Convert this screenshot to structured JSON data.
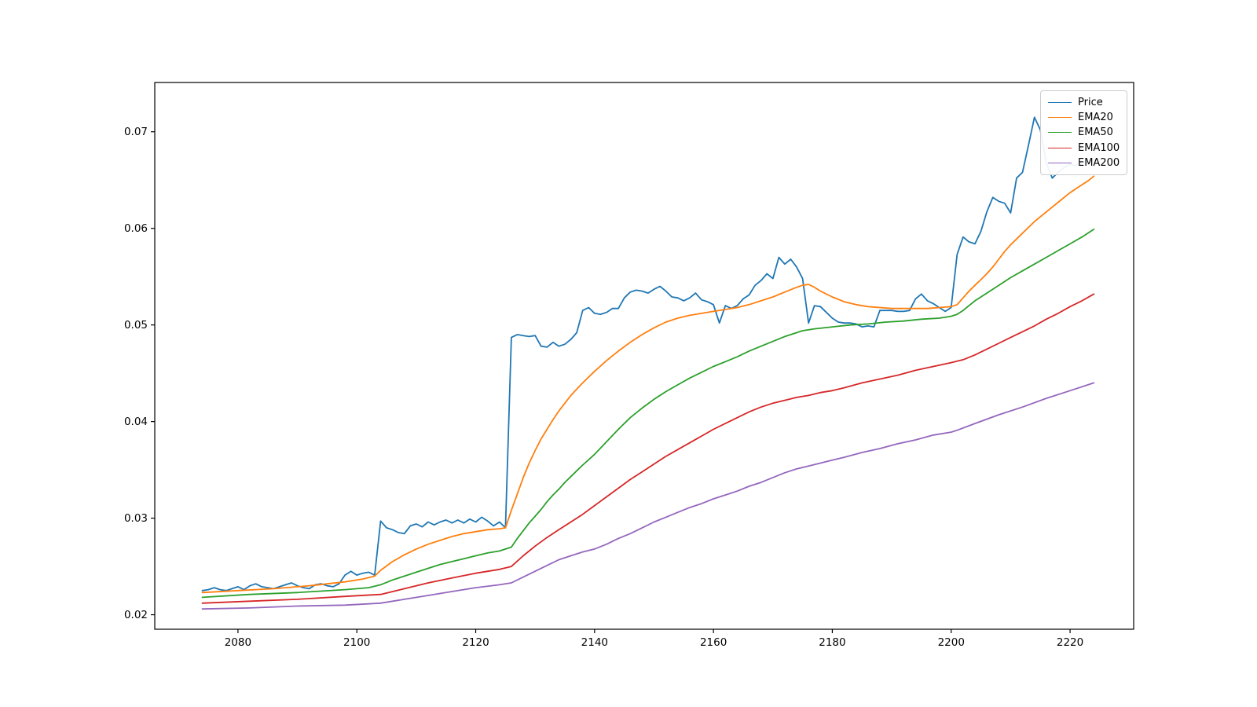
{
  "figure": {
    "background": "#ffffff",
    "title": ""
  },
  "chart_data": {
    "type": "line",
    "title": "",
    "xlabel": "",
    "ylabel": "",
    "grid": false,
    "xlim": [
      2066.0,
      2230.7
    ],
    "ylim": [
      0.0185,
      0.0751
    ],
    "x_ticks": {
      "values": [
        2080,
        2100,
        2120,
        2140,
        2160,
        2180,
        2200,
        2220
      ],
      "labels": [
        "2080",
        "2100",
        "2120",
        "2140",
        "2160",
        "2180",
        "2200",
        "2220"
      ]
    },
    "y_ticks": {
      "values": [
        0.02,
        0.03,
        0.04,
        0.05,
        0.06,
        0.07
      ],
      "labels": [
        "0.02",
        "0.03",
        "0.04",
        "0.05",
        "0.06",
        "0.07"
      ]
    },
    "legend": {
      "location": "upper right",
      "entries": [
        "Price",
        "EMA20",
        "EMA50",
        "EMA100",
        "EMA200"
      ]
    },
    "series": [
      {
        "name": "Price",
        "color": "#1f77b4",
        "x_start": 2074,
        "x_step": 1,
        "y": [
          0.0225,
          0.0226,
          0.0228,
          0.0226,
          0.0225,
          0.0227,
          0.0229,
          0.0226,
          0.023,
          0.0232,
          0.0229,
          0.0228,
          0.0227,
          0.0229,
          0.0231,
          0.0233,
          0.023,
          0.0228,
          0.0227,
          0.0231,
          0.0232,
          0.023,
          0.0229,
          0.0232,
          0.0241,
          0.0245,
          0.0241,
          0.0243,
          0.0244,
          0.0241,
          0.0297,
          0.029,
          0.0288,
          0.0285,
          0.0284,
          0.0292,
          0.0294,
          0.0291,
          0.0296,
          0.0293,
          0.0296,
          0.0298,
          0.0295,
          0.0298,
          0.0295,
          0.0299,
          0.0296,
          0.0301,
          0.0297,
          0.0292,
          0.0296,
          0.029,
          0.0487,
          0.049,
          0.0489,
          0.0488,
          0.0489,
          0.0478,
          0.0477,
          0.0482,
          0.0478,
          0.048,
          0.0485,
          0.0492,
          0.0515,
          0.0518,
          0.0512,
          0.0511,
          0.0513,
          0.0517,
          0.0517,
          0.0528,
          0.0534,
          0.0536,
          0.0535,
          0.0533,
          0.0537,
          0.054,
          0.0535,
          0.0529,
          0.0528,
          0.0525,
          0.0528,
          0.0533,
          0.0526,
          0.0524,
          0.0521,
          0.0502,
          0.052,
          0.0517,
          0.052,
          0.0527,
          0.0531,
          0.0541,
          0.0546,
          0.0553,
          0.0548,
          0.057,
          0.0563,
          0.0568,
          0.056,
          0.0548,
          0.0502,
          0.052,
          0.0519,
          0.0513,
          0.0507,
          0.0503,
          0.0502,
          0.0502,
          0.0501,
          0.0498,
          0.0499,
          0.0498,
          0.0515,
          0.0515,
          0.0515,
          0.0514,
          0.0514,
          0.0515,
          0.0527,
          0.0532,
          0.0525,
          0.0522,
          0.0518,
          0.0514,
          0.0518,
          0.0573,
          0.0591,
          0.0586,
          0.0584,
          0.0597,
          0.0617,
          0.0632,
          0.0628,
          0.0626,
          0.0616,
          0.0652,
          0.0658,
          0.0686,
          0.0715,
          0.0702,
          0.0668,
          0.0652,
          0.0658,
          0.0663,
          0.0666,
          0.0665,
          0.0669,
          0.0668,
          0.0671
        ]
      },
      {
        "name": "EMA20",
        "color": "#ff7f0e",
        "x": [
          2074,
          2080,
          2086,
          2092,
          2098,
          2101,
          2103,
          2104,
          2106,
          2108,
          2110,
          2112,
          2114,
          2116,
          2118,
          2120,
          2122,
          2124,
          2125,
          2126,
          2127,
          2128,
          2129,
          2130,
          2131,
          2132,
          2133,
          2134,
          2135,
          2136,
          2138,
          2140,
          2142,
          2144,
          2146,
          2148,
          2150,
          2152,
          2154,
          2156,
          2158,
          2160,
          2162,
          2164,
          2166,
          2168,
          2170,
          2172,
          2174,
          2175,
          2176,
          2177,
          2178,
          2180,
          2182,
          2184,
          2186,
          2188,
          2190,
          2193,
          2196,
          2198,
          2200,
          2201,
          2202,
          2203,
          2204,
          2205,
          2206,
          2207,
          2208,
          2209,
          2210,
          2211,
          2212,
          2213,
          2214,
          2215,
          2216,
          2217,
          2218,
          2219,
          2220,
          2221,
          2222,
          2223,
          2224
        ],
        "y": [
          0.0223,
          0.0225,
          0.0227,
          0.023,
          0.0234,
          0.0237,
          0.024,
          0.0246,
          0.0255,
          0.0262,
          0.0268,
          0.0273,
          0.0277,
          0.0281,
          0.0284,
          0.0286,
          0.0288,
          0.0289,
          0.029,
          0.0308,
          0.0325,
          0.0342,
          0.0357,
          0.037,
          0.0382,
          0.0392,
          0.0402,
          0.0411,
          0.0419,
          0.0427,
          0.044,
          0.0452,
          0.0463,
          0.0473,
          0.0482,
          0.049,
          0.0497,
          0.0503,
          0.0507,
          0.051,
          0.0512,
          0.0514,
          0.0516,
          0.0518,
          0.0521,
          0.0525,
          0.0529,
          0.0534,
          0.0539,
          0.0541,
          0.0542,
          0.0539,
          0.0535,
          0.0529,
          0.0524,
          0.0521,
          0.0519,
          0.0518,
          0.0517,
          0.0517,
          0.0517,
          0.0518,
          0.0519,
          0.0521,
          0.0528,
          0.0535,
          0.0541,
          0.0547,
          0.0553,
          0.056,
          0.0568,
          0.0576,
          0.0583,
          0.0589,
          0.0595,
          0.0601,
          0.0607,
          0.0612,
          0.0617,
          0.0622,
          0.0627,
          0.0632,
          0.0637,
          0.0641,
          0.0645,
          0.0649,
          0.0654
        ]
      },
      {
        "name": "EMA50",
        "color": "#2ca02c",
        "x": [
          2074,
          2082,
          2090,
          2098,
          2102,
          2104,
          2106,
          2108,
          2110,
          2112,
          2114,
          2116,
          2118,
          2120,
          2122,
          2124,
          2125,
          2126,
          2127,
          2128,
          2129,
          2130,
          2131,
          2132,
          2133,
          2134,
          2135,
          2136,
          2137,
          2138,
          2140,
          2142,
          2144,
          2146,
          2148,
          2150,
          2152,
          2154,
          2156,
          2158,
          2160,
          2162,
          2164,
          2166,
          2168,
          2170,
          2172,
          2174,
          2175,
          2177,
          2180,
          2183,
          2186,
          2189,
          2192,
          2195,
          2198,
          2200,
          2201,
          2202,
          2203,
          2204,
          2206,
          2208,
          2210,
          2212,
          2214,
          2216,
          2218,
          2220,
          2222,
          2224
        ],
        "y": [
          0.0218,
          0.0221,
          0.0223,
          0.0226,
          0.0228,
          0.0231,
          0.0236,
          0.024,
          0.0244,
          0.0248,
          0.0252,
          0.0255,
          0.0258,
          0.0261,
          0.0264,
          0.0266,
          0.0268,
          0.027,
          0.0279,
          0.0287,
          0.0295,
          0.0302,
          0.0309,
          0.0317,
          0.0324,
          0.033,
          0.0337,
          0.0343,
          0.0349,
          0.0355,
          0.0366,
          0.0379,
          0.0392,
          0.0404,
          0.0414,
          0.0423,
          0.0431,
          0.0438,
          0.0445,
          0.0451,
          0.0457,
          0.0462,
          0.0467,
          0.0473,
          0.0478,
          0.0483,
          0.0488,
          0.0492,
          0.0494,
          0.0496,
          0.0498,
          0.05,
          0.0501,
          0.0503,
          0.0504,
          0.0506,
          0.0507,
          0.0509,
          0.0511,
          0.0515,
          0.052,
          0.0525,
          0.0533,
          0.0541,
          0.0549,
          0.0556,
          0.0563,
          0.057,
          0.0577,
          0.0584,
          0.0591,
          0.0599
        ]
      },
      {
        "name": "EMA100",
        "color": "#d62728",
        "x": [
          2074,
          2082,
          2090,
          2098,
          2104,
          2108,
          2112,
          2116,
          2120,
          2124,
          2126,
          2128,
          2130,
          2132,
          2134,
          2136,
          2138,
          2140,
          2142,
          2144,
          2146,
          2148,
          2150,
          2152,
          2154,
          2156,
          2158,
          2160,
          2162,
          2164,
          2166,
          2168,
          2170,
          2172,
          2174,
          2176,
          2178,
          2180,
          2182,
          2185,
          2188,
          2191,
          2194,
          2197,
          2200,
          2202,
          2204,
          2206,
          2208,
          2210,
          2212,
          2214,
          2216,
          2218,
          2220,
          2222,
          2224
        ],
        "y": [
          0.0212,
          0.0214,
          0.0216,
          0.0219,
          0.0221,
          0.0227,
          0.0233,
          0.0238,
          0.0243,
          0.0247,
          0.025,
          0.0261,
          0.0271,
          0.028,
          0.0288,
          0.0296,
          0.0304,
          0.0313,
          0.0322,
          0.0331,
          0.034,
          0.0348,
          0.0356,
          0.0364,
          0.0371,
          0.0378,
          0.0385,
          0.0392,
          0.0398,
          0.0404,
          0.041,
          0.0415,
          0.0419,
          0.0422,
          0.0425,
          0.0427,
          0.043,
          0.0432,
          0.0435,
          0.044,
          0.0444,
          0.0448,
          0.0453,
          0.0457,
          0.0461,
          0.0464,
          0.0469,
          0.0475,
          0.0481,
          0.0487,
          0.0493,
          0.0499,
          0.0506,
          0.0512,
          0.0519,
          0.0525,
          0.0532
        ]
      },
      {
        "name": "EMA200",
        "color": "#9467bd",
        "x": [
          2074,
          2082,
          2090,
          2098,
          2104,
          2108,
          2112,
          2116,
          2120,
          2124,
          2126,
          2128,
          2130,
          2132,
          2134,
          2136,
          2138,
          2140,
          2142,
          2144,
          2146,
          2148,
          2150,
          2152,
          2154,
          2156,
          2158,
          2160,
          2162,
          2164,
          2166,
          2168,
          2170,
          2172,
          2174,
          2176,
          2178,
          2180,
          2182,
          2185,
          2188,
          2191,
          2194,
          2197,
          2200,
          2201,
          2204,
          2208,
          2212,
          2216,
          2220,
          2224
        ],
        "y": [
          0.0206,
          0.0207,
          0.0209,
          0.021,
          0.0212,
          0.0216,
          0.022,
          0.0224,
          0.0228,
          0.0231,
          0.0233,
          0.0239,
          0.0245,
          0.0251,
          0.0257,
          0.0261,
          0.0265,
          0.0268,
          0.0273,
          0.0279,
          0.0284,
          0.029,
          0.0296,
          0.0301,
          0.0306,
          0.0311,
          0.0315,
          0.032,
          0.0324,
          0.0328,
          0.0333,
          0.0337,
          0.0342,
          0.0347,
          0.0351,
          0.0354,
          0.0357,
          0.036,
          0.0363,
          0.0368,
          0.0372,
          0.0377,
          0.0381,
          0.0386,
          0.0389,
          0.0391,
          0.0398,
          0.0407,
          0.0415,
          0.0424,
          0.0432,
          0.044
        ]
      }
    ]
  }
}
